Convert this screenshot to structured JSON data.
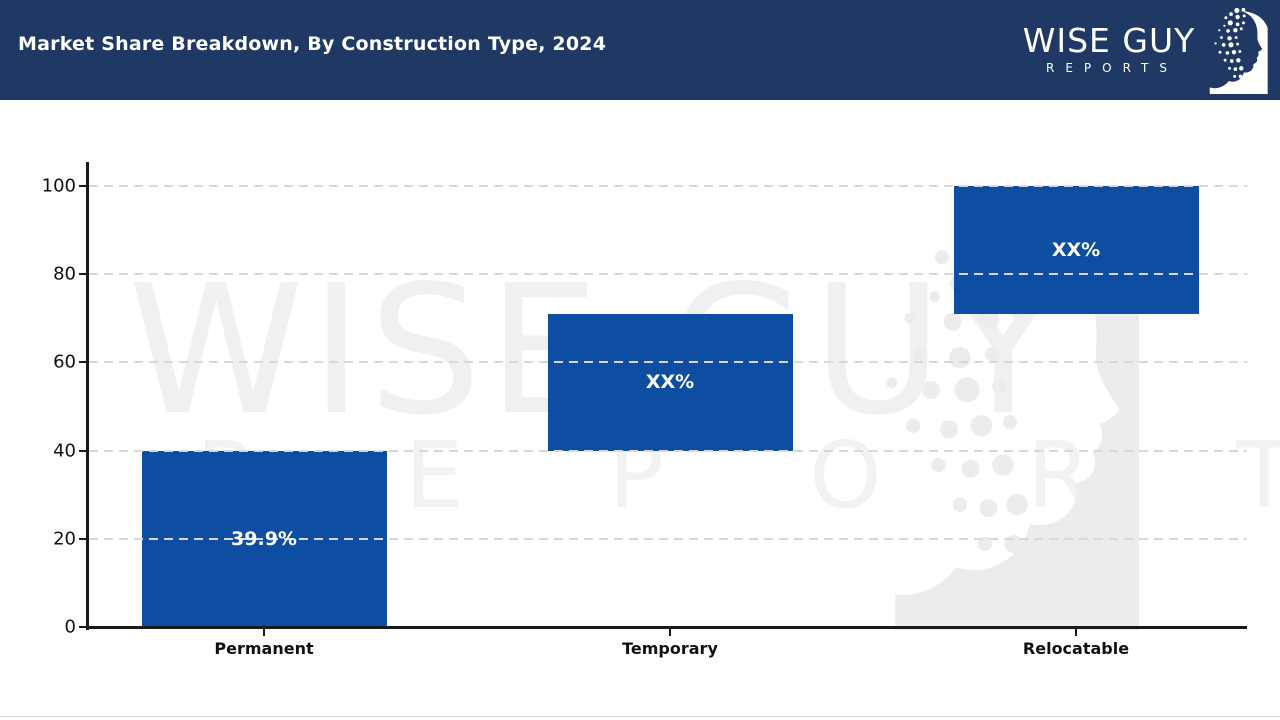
{
  "header": {
    "title": "Market Share Breakdown, By Construction Type, 2024",
    "bg_color": "#1f3864",
    "text_color": "#ffffff",
    "logo": {
      "line1": "WISE GUY",
      "line2": "REPORTS"
    }
  },
  "watermark": {
    "line1": "WISE GUY",
    "line2": "R E P O R T S",
    "color": "#f0f0f0"
  },
  "chart_data": {
    "type": "bar",
    "subtype": "waterfall",
    "title": "Market Share Breakdown, By Construction Type, 2024",
    "categories": [
      "Permanent",
      "Temporary",
      "Relocatable"
    ],
    "segments": [
      {
        "category": "Permanent",
        "start": 0,
        "end": 39.9,
        "label": "39.9%"
      },
      {
        "category": "Temporary",
        "start": 39.9,
        "end": 71,
        "label": "XX%"
      },
      {
        "category": "Relocatable",
        "start": 71,
        "end": 100,
        "label": "XX%"
      }
    ],
    "bar_color": "#0d4da2",
    "bar_label_color": "#ffffff",
    "ylim": [
      0,
      100
    ],
    "yticks": [
      0,
      20,
      40,
      60,
      80,
      100
    ],
    "grid": "dashed horizontal gridlines at 20,40,60,80,100 drawn over bars",
    "grid_color": "#d8d8d8",
    "axis_color": "#1a1a1a",
    "xlabel": "",
    "ylabel": "",
    "legend": "none"
  }
}
